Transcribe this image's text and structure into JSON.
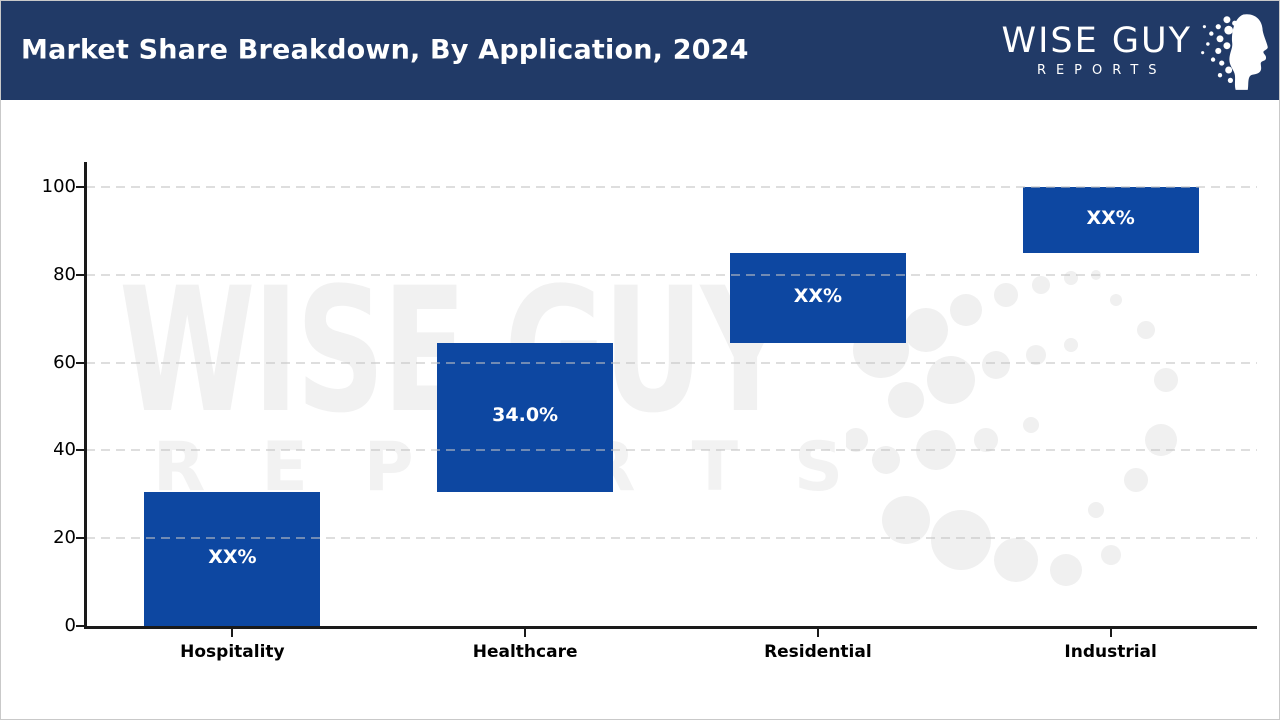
{
  "header": {
    "title": "Market Share Breakdown, By Application, 2024",
    "logo": {
      "line1": "WISE GUY",
      "line2": "REPORTS"
    }
  },
  "watermark": {
    "line1": "WISE GUY",
    "line2": "REPORTS"
  },
  "chart_data": {
    "type": "bar",
    "subtype": "floating-range-bars",
    "title": "Market Share Breakdown, By Application, 2024",
    "xlabel": "",
    "ylabel": "",
    "categories": [
      "Hospitality",
      "Healthcare",
      "Residential",
      "Industrial"
    ],
    "bars": [
      {
        "category": "Hospitality",
        "start": 0,
        "end": 30.5,
        "label": "XX%"
      },
      {
        "category": "Healthcare",
        "start": 30.5,
        "end": 64.5,
        "label": "34.0%"
      },
      {
        "category": "Residential",
        "start": 64.5,
        "end": 85,
        "label": "XX%"
      },
      {
        "category": "Industrial",
        "start": 85,
        "end": 100,
        "label": "XX%"
      }
    ],
    "ylim": [
      0,
      100
    ],
    "yticks": [
      0,
      20,
      40,
      60,
      80,
      100
    ],
    "grid": "horizontal-dashed",
    "legend": "none",
    "bar_color": "#0d47a1",
    "bar_label_color": "#ffffff",
    "axis_color": "#1a1a1a",
    "grid_color": "#d9d9d9"
  }
}
